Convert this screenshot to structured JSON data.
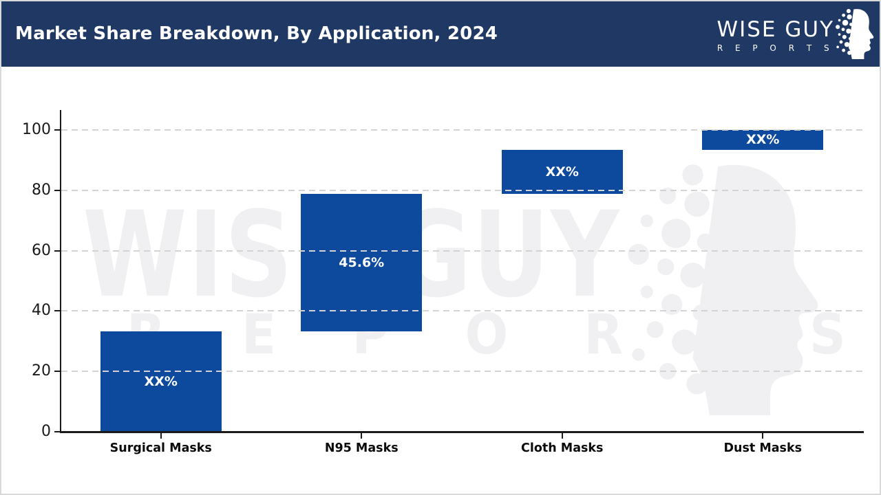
{
  "header": {
    "title": "Market Share Breakdown, By Application, 2024",
    "bg_color": "#1f3864",
    "logo": {
      "line1": "WISE GUY",
      "line2": "R E P O R T S"
    }
  },
  "watermark": {
    "line1": "WISE GUY",
    "line2": "R E P O R T S"
  },
  "chart_data": {
    "type": "bar",
    "subtype": "floating-waterfall",
    "title": "Market Share Breakdown, By Application, 2024",
    "categories": [
      "Surgical Masks",
      "N95 Masks",
      "Cloth Masks",
      "Dust Masks"
    ],
    "bars": [
      {
        "category": "Surgical Masks",
        "from": 0,
        "to": 33.3,
        "label": "XX%"
      },
      {
        "category": "N95 Masks",
        "from": 33.3,
        "to": 78.9,
        "label": "45.6%"
      },
      {
        "category": "Cloth Masks",
        "from": 78.9,
        "to": 93.4,
        "label": "XX%"
      },
      {
        "category": "Dust Masks",
        "from": 93.4,
        "to": 100,
        "label": "XX%"
      }
    ],
    "yticks": [
      0,
      20,
      40,
      60,
      80,
      100
    ],
    "ylim": [
      0,
      106
    ],
    "xlabel": "",
    "ylabel": "",
    "legend": "none",
    "grid": "horizontal-dashed",
    "bar_color": "#0d4a9e",
    "grid_color": "#d3d3d3",
    "axis_color": "#1a1a1a"
  }
}
